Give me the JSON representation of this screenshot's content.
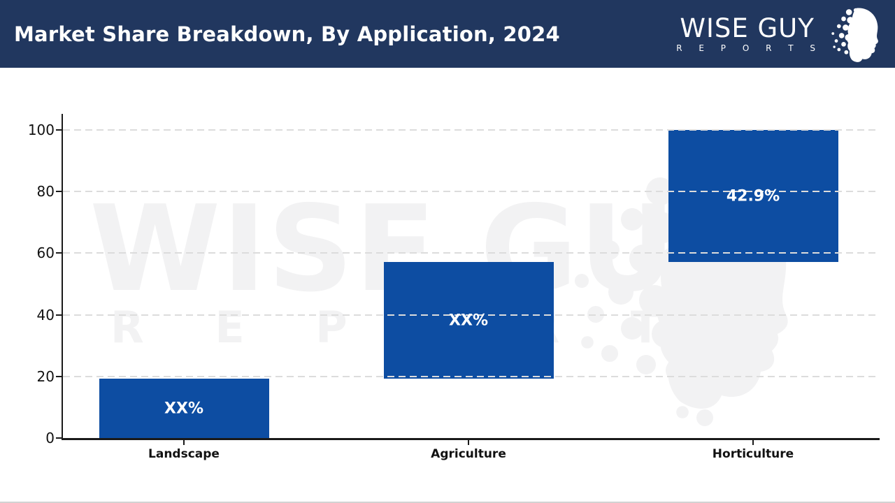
{
  "header": {
    "title": "Market Share Breakdown, By Application, 2024",
    "bg_color": "#21375F",
    "logo": {
      "brand": "WISE GUY",
      "sub": "R E P O R T S"
    }
  },
  "watermark": {
    "brand": "WISE GUY",
    "sub": "R E P O R T S"
  },
  "chart_data": {
    "type": "bar",
    "subtype": "floating-segment-waterfall",
    "title": "Market Share Breakdown, By Application, 2024",
    "categories": [
      "Landscape",
      "Agriculture",
      "Horticulture"
    ],
    "series": [
      {
        "name": "Market Share (%)",
        "segments": [
          {
            "category": "Landscape",
            "start": 0,
            "end": 19.2,
            "label": "XX%"
          },
          {
            "category": "Agriculture",
            "start": 19.2,
            "end": 57.1,
            "label": "XX%"
          },
          {
            "category": "Horticulture",
            "start": 57.1,
            "end": 100,
            "label": "42.9%"
          }
        ]
      }
    ],
    "xlabel": "",
    "ylabel": "",
    "ylim": [
      0,
      105
    ],
    "yticks": [
      0,
      20,
      40,
      60,
      80,
      100
    ],
    "grid": "horizontal-dashed",
    "grid_color": "#dcdcdc",
    "bar_color": "#0D4DA2",
    "bar_label_color": "#FFFFFF",
    "axis_color": "#1a1a1a",
    "legend": "none"
  }
}
